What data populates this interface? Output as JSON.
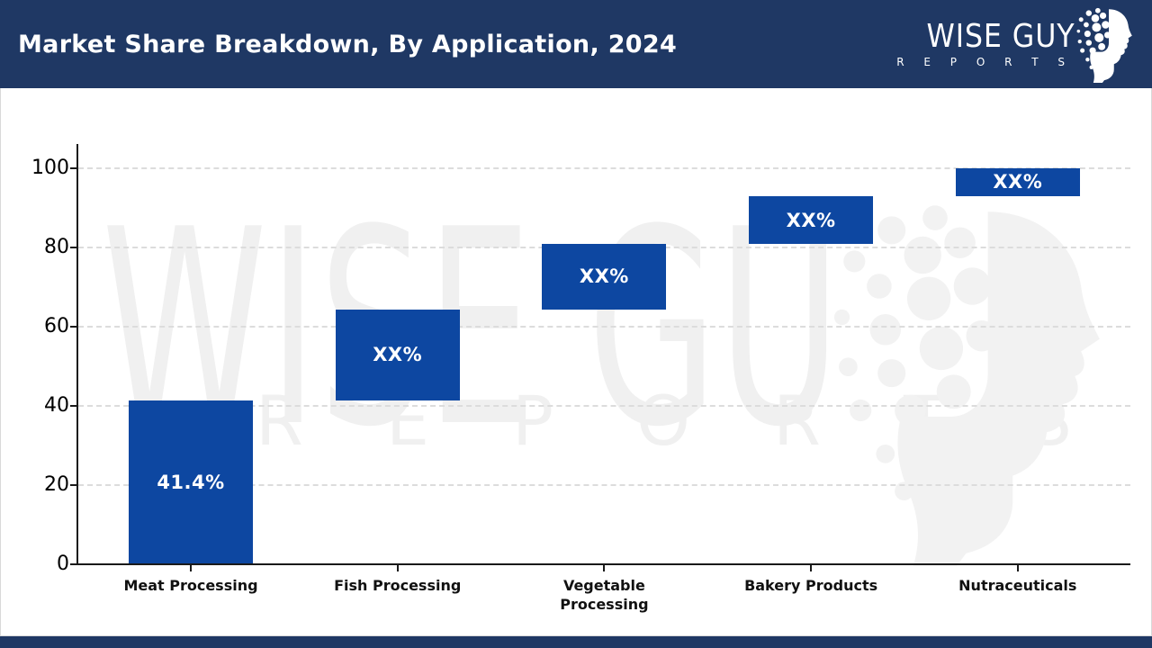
{
  "header": {
    "title": "Market Share Breakdown, By Application, 2024",
    "logo": {
      "primary": "WISE GUY",
      "secondary": "R E P O R T S"
    }
  },
  "watermark": {
    "primary": "WISE GU",
    "secondary": "R E P O R T S"
  },
  "chart_data": {
    "type": "bar",
    "subtype": "floating-waterfall",
    "title": "Market Share Breakdown, By Application, 2024",
    "categories": [
      "Meat Processing",
      "Fish Processing",
      "Vegetable\nProcessing",
      "Bakery Products",
      "Nutraceuticals"
    ],
    "bars": [
      {
        "category": "Meat Processing",
        "start": 0,
        "end": 41.4,
        "label": "41.4%"
      },
      {
        "category": "Fish Processing",
        "start": 41.4,
        "end": 64.4,
        "label": "XX%"
      },
      {
        "category": "Vegetable Processing",
        "start": 64.4,
        "end": 80.9,
        "label": "XX%"
      },
      {
        "category": "Bakery Products",
        "start": 80.9,
        "end": 92.9,
        "label": "XX%"
      },
      {
        "category": "Nutraceuticals",
        "start": 92.9,
        "end": 100.1,
        "label": "XX%"
      }
    ],
    "y_ticks": [
      0,
      20,
      40,
      60,
      80,
      100
    ],
    "ylim": [
      0,
      106
    ],
    "xlabel": "",
    "ylabel": "",
    "grid": "horizontal-dashed",
    "legend": "none",
    "bar_color": "#0d47a1",
    "bar_label_color": "#ffffff"
  },
  "colors": {
    "header_bg": "#1f3864",
    "footer_bg": "#1f3864",
    "bar": "#0d47a1",
    "grid": "#dcdcdc",
    "axis": "#1a1a1a",
    "watermark": "#f0f0f0",
    "frame_border": "#d9d9d9"
  }
}
